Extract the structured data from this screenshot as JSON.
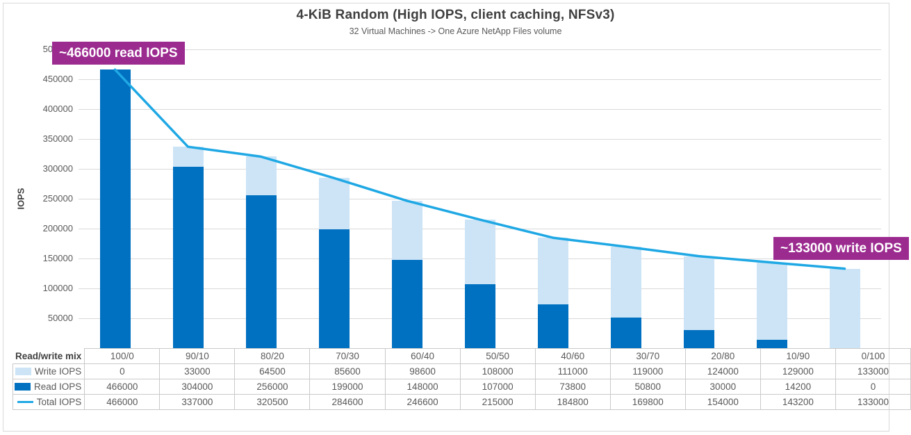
{
  "chart": {
    "title": "4-KiB Random (High IOPS, client caching, NFSv3)",
    "subtitle": "32 Virtual Machines -> One Azure NetApp Files volume",
    "y_axis_label": "IOPS",
    "annotations": [
      {
        "id": "annotation-read",
        "text": "~466000 read IOPS",
        "color": "#9C2B90"
      },
      {
        "id": "annotation-write",
        "text": "~133000 write IOPS",
        "color": "#9C2B90"
      }
    ]
  },
  "chart_data": {
    "type": "bar",
    "subtype": "stacked-column-with-line-overlay-and-data-table",
    "title": "4-KiB Random (High IOPS, client caching, NFSv3)",
    "subtitle": "32 Virtual Machines -> One Azure NetApp Files volume",
    "xlabel": "Read/write mix",
    "ylabel": "IOPS",
    "ylim": [
      0,
      500000
    ],
    "ytick_step": 50000,
    "grid": "horizontal",
    "legend_position": "data-table-rows",
    "categories": [
      "100/0",
      "90/10",
      "80/20",
      "70/30",
      "60/40",
      "50/50",
      "40/60",
      "30/70",
      "20/80",
      "10/90",
      "0/100"
    ],
    "category_axis_header": "Read/write mix",
    "series": [
      {
        "name": "Write IOPS",
        "type": "bar",
        "stack": "top",
        "color": "#CCE4F6",
        "values": [
          0,
          33000,
          64500,
          85600,
          98600,
          108000,
          111000,
          119000,
          124000,
          129000,
          133000
        ]
      },
      {
        "name": "Read IOPS",
        "type": "bar",
        "stack": "bottom",
        "color": "#0070C0",
        "values": [
          466000,
          304000,
          256000,
          199000,
          148000,
          107000,
          73800,
          50800,
          30000,
          14200,
          0
        ]
      },
      {
        "name": "Total IOPS",
        "type": "line",
        "color": "#1FA8E4",
        "values": [
          466000,
          337000,
          320500,
          284600,
          246600,
          215000,
          184800,
          169800,
          154000,
          143200,
          133000
        ]
      }
    ],
    "colors": {
      "gridline": "#D9D9D9",
      "table_border": "#C9C9C9",
      "text_primary": "#404040",
      "text_secondary": "#595959",
      "annotation_bg": "#9C2B90"
    }
  }
}
